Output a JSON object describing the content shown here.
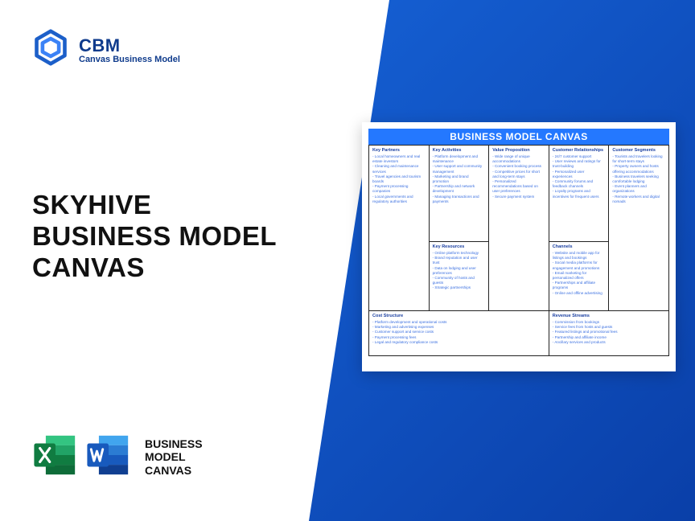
{
  "brand": {
    "name": "CBM",
    "subtitle": "Canvas Business Model"
  },
  "title": {
    "line1": "SKYHIVE",
    "line2": "BUSINESS MODEL",
    "line3": "CANVAS"
  },
  "fileLabel": {
    "l1": "BUSINESS",
    "l2": "MODEL",
    "l3": "CANVAS"
  },
  "colors": {
    "blueGradientStart": "#1560d4",
    "blueGradientEnd": "#0a3fa8",
    "canvasHeader": "#2478ff",
    "brandText": "#0f3b8c",
    "excelDark": "#107c41",
    "excelLight": "#21a366",
    "wordDark": "#185abd",
    "wordLight": "#41a5ee"
  },
  "canvas": {
    "title": "BUSINESS MODEL CANVAS",
    "sections": {
      "keyPartners": {
        "title": "Key Partners",
        "items": [
          "Local homeowners and real estate investors",
          "Cleaning and maintenance services",
          "Travel agencies and tourism boards",
          "Payment processing companies",
          "Local governments and regulatory authorities"
        ]
      },
      "keyActivities": {
        "title": "Key Activities",
        "items": [
          "Platform development and maintenance",
          "User support and community management",
          "Marketing and brand promotion",
          "Partnership and network development",
          "Managing transactions and payments"
        ]
      },
      "valueProposition": {
        "title": "Value Proposition",
        "items": [
          "Wide range of unique accommodations",
          "Convenient booking process",
          "Competitive prices for short and long-term stays",
          "Personalized recommendations based on user preferences",
          "Secure payment system"
        ]
      },
      "customerRelationships": {
        "title": "Customer Relationships",
        "items": [
          "24/7 customer support",
          "User reviews and ratings for trust-building",
          "Personalized user experiences",
          "Community forums and feedback channels",
          "Loyalty programs and incentives for frequent users"
        ]
      },
      "customerSegments": {
        "title": "Customer Segments",
        "items": [
          "Tourists and travelers looking for short-term stays",
          "Property owners and hosts offering accommodations",
          "Business travelers seeking comfortable lodging",
          "Event planners and organizations",
          "Remote workers and digital nomads"
        ]
      },
      "keyResources": {
        "title": "Key Resources",
        "items": [
          "Online platform technology",
          "Brand reputation and user trust",
          "Data on lodging and user preferences",
          "Community of hosts and guests",
          "Strategic partnerships"
        ]
      },
      "channels": {
        "title": "Channels",
        "items": [
          "Website and mobile app for listings and bookings",
          "Social media platforms for engagement and promotions",
          "Email marketing for personalized offers",
          "Partnerships and affiliate programs",
          "Online and offline advertising"
        ]
      },
      "costStructure": {
        "title": "Cost Structure",
        "items": [
          "Platform development and operational costs",
          "Marketing and advertising expenses",
          "Customer support and service costs",
          "Payment processing fees",
          "Legal and regulatory compliance costs"
        ]
      },
      "revenueStreams": {
        "title": "Revenue Streams",
        "items": [
          "Commission from bookings",
          "Service fees from hosts and guests",
          "Featured listings and promotional fees",
          "Partnership and affiliate income",
          "Ancillary services and products"
        ]
      }
    }
  }
}
